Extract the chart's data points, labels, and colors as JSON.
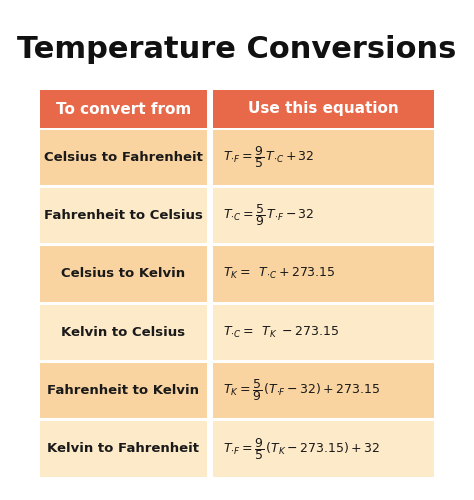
{
  "title": "Temperature Conversions",
  "title_fontsize": 22,
  "title_fontweight": "bold",
  "bg_color": "#ffffff",
  "header_color": "#E8694A",
  "row_color_odd": "#FAD4A0",
  "row_color_even": "#FDEAC8",
  "header_text_color": "#ffffff",
  "row_text_color": "#1a1a1a",
  "col1_header": "To convert from",
  "col2_header": "Use this equation",
  "rows": [
    {
      "from": "Celsius to Fahrenheit",
      "equation": "$T_{\\cdot F} = \\dfrac{9}{5}\\, T_{\\cdot C} + 32$"
    },
    {
      "from": "Fahrenheit to Celsius",
      "equation": "$T_{\\cdot C} = \\dfrac{5}{9}\\, T_{\\cdot F} - 32$"
    },
    {
      "from": "Celsius to Kelvin",
      "equation": "$T_{K} =\\;\\; T_{\\cdot C} + 273.15$"
    },
    {
      "from": "Kelvin to Celsius",
      "equation": "$T_{\\cdot C} =\\;\\; T_{K}\\; - 273.15$"
    },
    {
      "from": "Fahrenheit to Kelvin",
      "equation": "$T_{K} = \\dfrac{5}{9}\\,( T_{\\cdot F} - 32) +273.15$"
    },
    {
      "from": "Kelvin to Fahrenheit",
      "equation": "$T_{\\cdot F} = \\dfrac{9}{5}\\,( T_{K} - 273.15) + 32$"
    }
  ]
}
